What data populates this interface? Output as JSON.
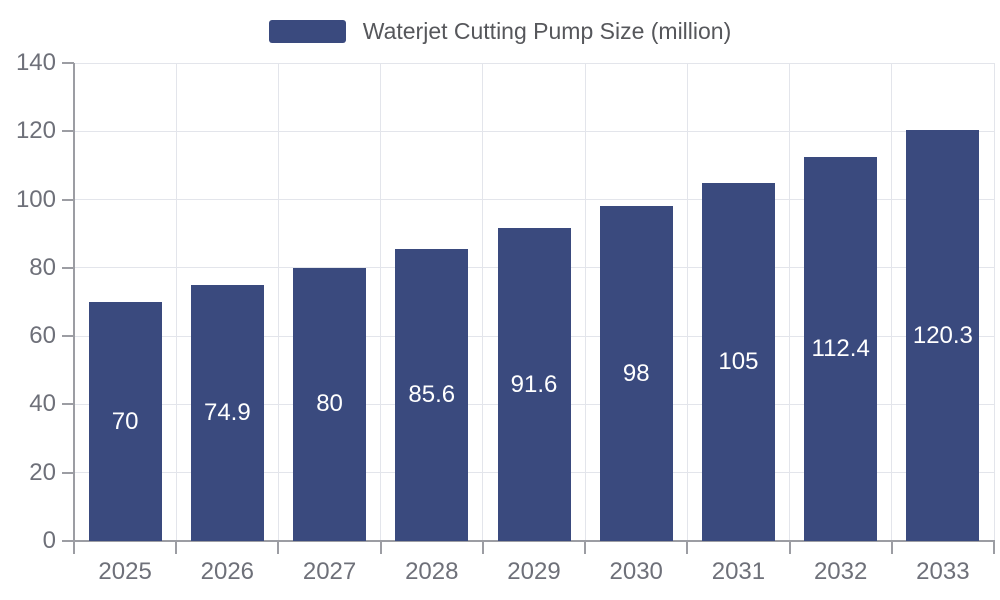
{
  "legend": {
    "label": "Waterjet Cutting Pump Size (million)"
  },
  "chart_data": {
    "type": "bar",
    "title": "",
    "xlabel": "",
    "ylabel": "",
    "categories": [
      "2025",
      "2026",
      "2027",
      "2028",
      "2029",
      "2030",
      "2031",
      "2032",
      "2033"
    ],
    "values": [
      70,
      74.9,
      80,
      85.6,
      91.6,
      98,
      105,
      112.4,
      120.3
    ],
    "value_labels": [
      "70",
      "74.9",
      "80",
      "85.6",
      "91.6",
      "98",
      "105",
      "112.4",
      "120.3"
    ],
    "series_name": "Waterjet Cutting Pump Size (million)",
    "ylim": [
      0,
      140
    ],
    "ytick_interval": 20,
    "yticks": [
      0,
      20,
      40,
      60,
      80,
      100,
      120,
      140
    ],
    "grid": true,
    "legend_position": "top"
  },
  "colors": {
    "bar": "#3a4a7e",
    "bar_value_text": "#ffffff",
    "grid": "#e3e5eb",
    "axis": "#9c9da3",
    "axis_text": "#6e7079",
    "legend_text": "#56575b",
    "background": "#ffffff"
  }
}
